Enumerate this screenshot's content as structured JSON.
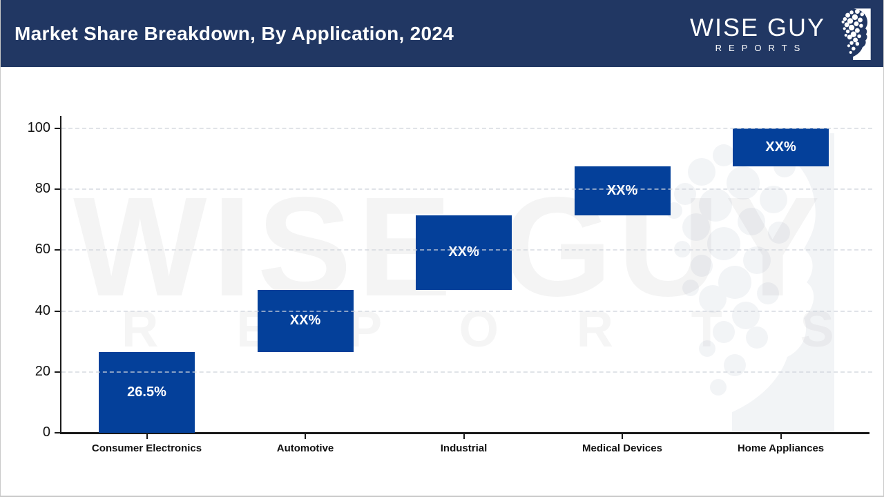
{
  "header": {
    "title": "Market Share Breakdown, By Application, 2024",
    "logo": {
      "line1": "WISE GUY",
      "line2": "REPORTS"
    },
    "background_color": "#213763"
  },
  "watermark": {
    "line1": "WISE GUY",
    "line2": "R E P O R T S"
  },
  "chart_data": {
    "type": "bar",
    "subtype": "waterfall",
    "title": "Market Share Breakdown, By Application, 2024",
    "categories": [
      "Consumer Electronics",
      "Automotive",
      "Industrial",
      "Medical Devices",
      "Home Appliances"
    ],
    "series": [
      {
        "name": "Market Share",
        "segments": [
          {
            "category": "Consumer Electronics",
            "start": 0,
            "end": 26.5,
            "label": "26.5%"
          },
          {
            "category": "Automotive",
            "start": 26.5,
            "end": 47,
            "label": "XX%"
          },
          {
            "category": "Industrial",
            "start": 47,
            "end": 71.5,
            "label": "XX%"
          },
          {
            "category": "Medical Devices",
            "start": 71.5,
            "end": 87.5,
            "label": "XX%"
          },
          {
            "category": "Home Appliances",
            "start": 87.5,
            "end": 100,
            "label": "XX%"
          }
        ]
      }
    ],
    "xlabel": "",
    "ylabel": "",
    "ylim": [
      0,
      100
    ],
    "yticks": [
      0,
      20,
      40,
      60,
      80,
      100
    ],
    "grid": "horizontal-dashed",
    "legend": "none",
    "bar_color": "#04409a",
    "bar_label_color": "#ffffff"
  }
}
